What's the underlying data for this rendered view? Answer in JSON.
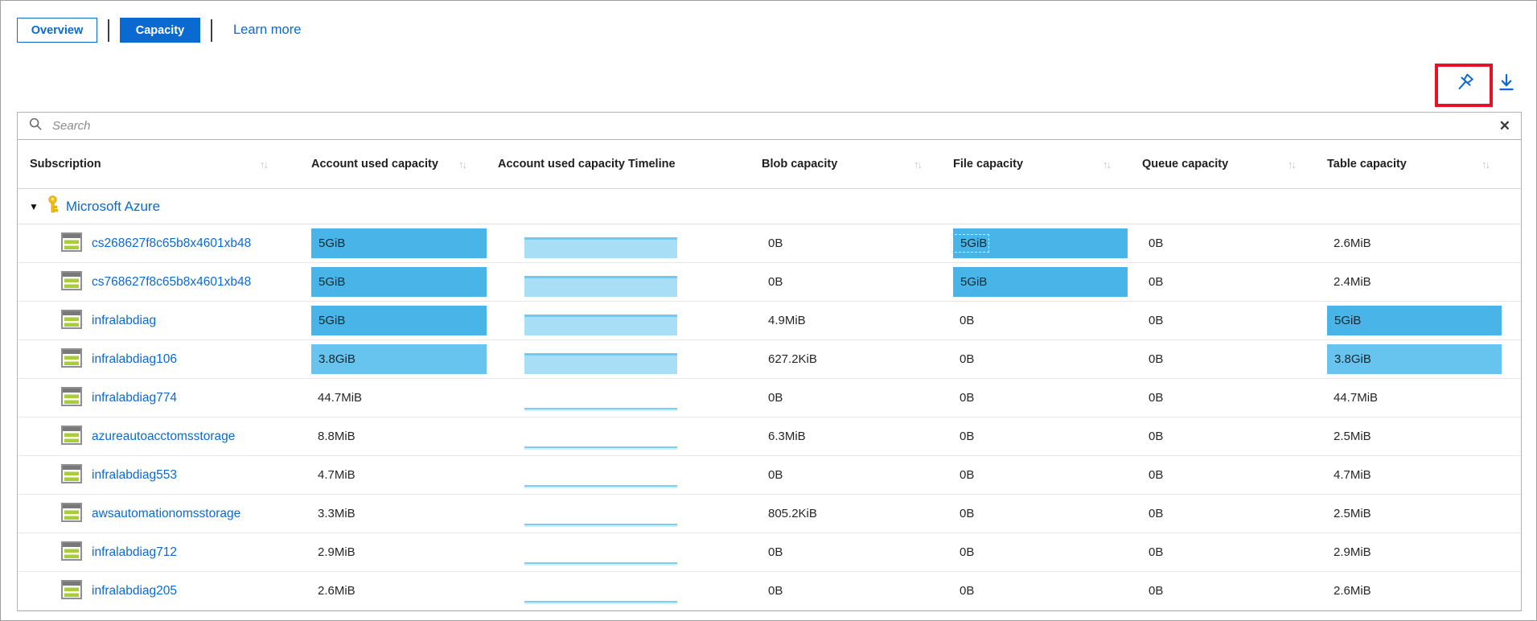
{
  "tabs": {
    "overview": "Overview",
    "capacity": "Capacity",
    "learn_more": "Learn more"
  },
  "search": {
    "placeholder": "Search",
    "clear_glyph": "✕"
  },
  "colors": {
    "accent_blue": "#0b69d2",
    "bar_blue": "#49b4e8",
    "bar_blue_light": "#67c4ee",
    "timeline_fill": "#a9def7",
    "timeline_line": "#74c8f1",
    "highlight_red": "#e81123",
    "link_blue": "#0b69d2"
  },
  "table": {
    "columns": [
      {
        "label": "Subscription",
        "sort": true
      },
      {
        "label": "Account used capacity",
        "sort": true
      },
      {
        "label": "Account used capacity Timeline",
        "sort": false
      },
      {
        "label": "Blob capacity",
        "sort": true
      },
      {
        "label": "File capacity",
        "sort": true
      },
      {
        "label": "Queue capacity",
        "sort": true
      },
      {
        "label": "Table capacity",
        "sort": true
      }
    ],
    "sort_glyph": "↑↓",
    "group": {
      "label": "Microsoft Azure",
      "expanded": true
    },
    "rows": [
      {
        "name": "cs268627f8c65b8x4601xb48",
        "account": "5GiB",
        "account_bar": "solid",
        "timeline": "bar",
        "blob": "0B",
        "file": "5GiB",
        "file_bar": "solid",
        "file_focus": true,
        "queue": "0B",
        "table_cap": "2.6MiB",
        "table_bar": null
      },
      {
        "name": "cs768627f8c65b8x4601xb48",
        "account": "5GiB",
        "account_bar": "solid",
        "timeline": "bar",
        "blob": "0B",
        "file": "5GiB",
        "file_bar": "solid",
        "file_focus": false,
        "queue": "0B",
        "table_cap": "2.4MiB",
        "table_bar": null
      },
      {
        "name": "infralabdiag",
        "account": "5GiB",
        "account_bar": "solid",
        "timeline": "bar",
        "blob": "4.9MiB",
        "file": "0B",
        "file_bar": null,
        "file_focus": false,
        "queue": "0B",
        "table_cap": "5GiB",
        "table_bar": "solid"
      },
      {
        "name": "infralabdiag106",
        "account": "3.8GiB",
        "account_bar": "light",
        "timeline": "bar",
        "blob": "627.2KiB",
        "file": "0B",
        "file_bar": null,
        "file_focus": false,
        "queue": "0B",
        "table_cap": "3.8GiB",
        "table_bar": "light"
      },
      {
        "name": "infralabdiag774",
        "account": "44.7MiB",
        "account_bar": null,
        "timeline": "line",
        "blob": "0B",
        "file": "0B",
        "file_bar": null,
        "file_focus": false,
        "queue": "0B",
        "table_cap": "44.7MiB",
        "table_bar": null
      },
      {
        "name": "azureautoacctomsstorage",
        "account": "8.8MiB",
        "account_bar": null,
        "timeline": "line",
        "blob": "6.3MiB",
        "file": "0B",
        "file_bar": null,
        "file_focus": false,
        "queue": "0B",
        "table_cap": "2.5MiB",
        "table_bar": null
      },
      {
        "name": "infralabdiag553",
        "account": "4.7MiB",
        "account_bar": null,
        "timeline": "line",
        "blob": "0B",
        "file": "0B",
        "file_bar": null,
        "file_focus": false,
        "queue": "0B",
        "table_cap": "4.7MiB",
        "table_bar": null
      },
      {
        "name": "awsautomationomsstorage",
        "account": "3.3MiB",
        "account_bar": null,
        "timeline": "line",
        "blob": "805.2KiB",
        "file": "0B",
        "file_bar": null,
        "file_focus": false,
        "queue": "0B",
        "table_cap": "2.5MiB",
        "table_bar": null
      },
      {
        "name": "infralabdiag712",
        "account": "2.9MiB",
        "account_bar": null,
        "timeline": "line",
        "blob": "0B",
        "file": "0B",
        "file_bar": null,
        "file_focus": false,
        "queue": "0B",
        "table_cap": "2.9MiB",
        "table_bar": null
      },
      {
        "name": "infralabdiag205",
        "account": "2.6MiB",
        "account_bar": null,
        "timeline": "line",
        "blob": "0B",
        "file": "0B",
        "file_bar": null,
        "file_focus": false,
        "queue": "0B",
        "table_cap": "2.6MiB",
        "table_bar": null
      }
    ]
  }
}
